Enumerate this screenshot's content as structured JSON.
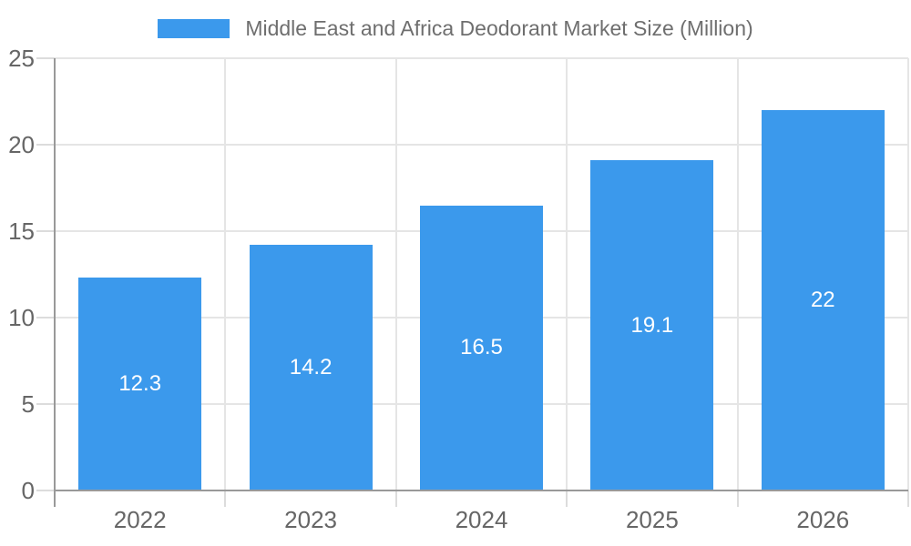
{
  "chart_data": {
    "type": "bar",
    "title": "Middle East and Africa Deodorant Market Size (Million)",
    "categories": [
      "2022",
      "2023",
      "2024",
      "2025",
      "2026"
    ],
    "values": [
      12.3,
      14.2,
      16.5,
      19.1,
      22
    ],
    "value_labels": [
      "12.3",
      "14.2",
      "16.5",
      "19.1",
      "22"
    ],
    "xlabel": "",
    "ylabel": "",
    "ylim": [
      0,
      25
    ],
    "yticks": [
      0,
      5,
      10,
      15,
      20,
      25
    ],
    "legend_position": "top-center",
    "grid": "on",
    "colors": {
      "bar": "#3b99ec",
      "grid": "#e5e5e5",
      "tick": "#dcdcdc",
      "axis": "#999999",
      "tick_text": "#666666",
      "legend_text": "#6e6e6e",
      "value_text": "#ffffff",
      "background": "#ffffff"
    }
  }
}
